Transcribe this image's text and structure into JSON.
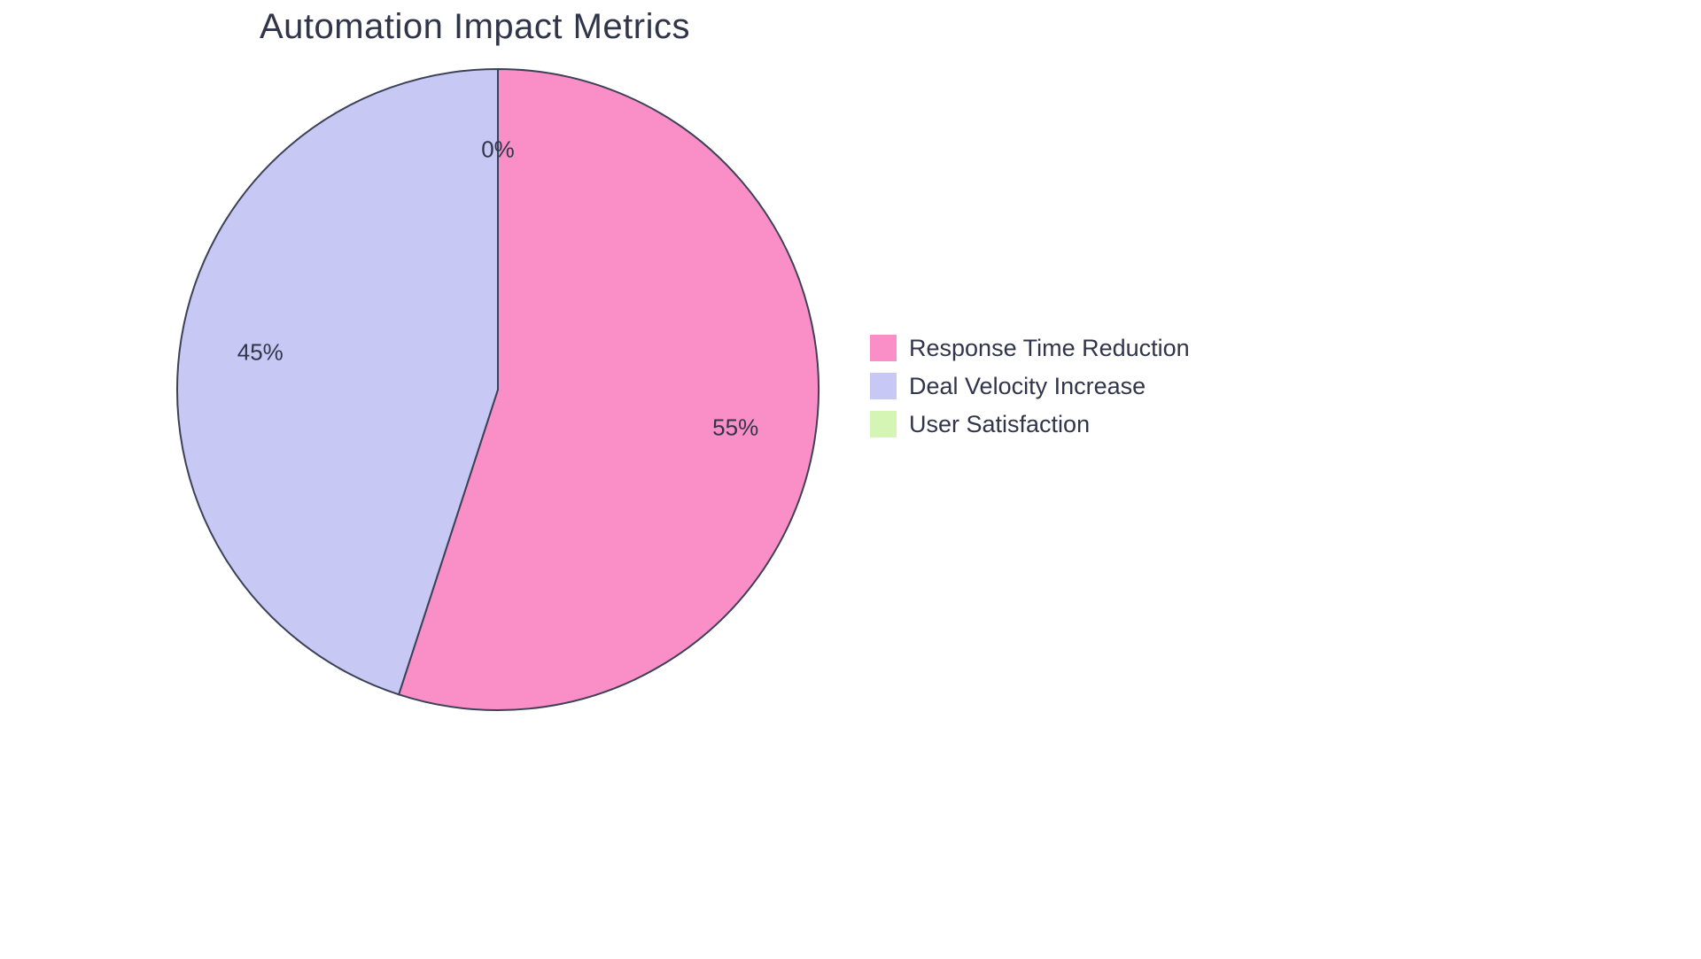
{
  "chart_data": {
    "type": "pie",
    "title": "Automation Impact Metrics",
    "categories": [
      "Response Time Reduction",
      "Deal Velocity Increase",
      "User Satisfaction"
    ],
    "values": [
      55,
      45,
      0
    ],
    "percent_labels": [
      "55%",
      "45%",
      "0%"
    ],
    "colors": [
      "#F98FC6",
      "#C7C8F4",
      "#D5F5B5"
    ],
    "stroke_color": "#3C4157",
    "label_color": "#31354A",
    "legend_position": "right",
    "start_angle_deg": 0,
    "direction": "clockwise",
    "background": "#FFFFFF"
  }
}
